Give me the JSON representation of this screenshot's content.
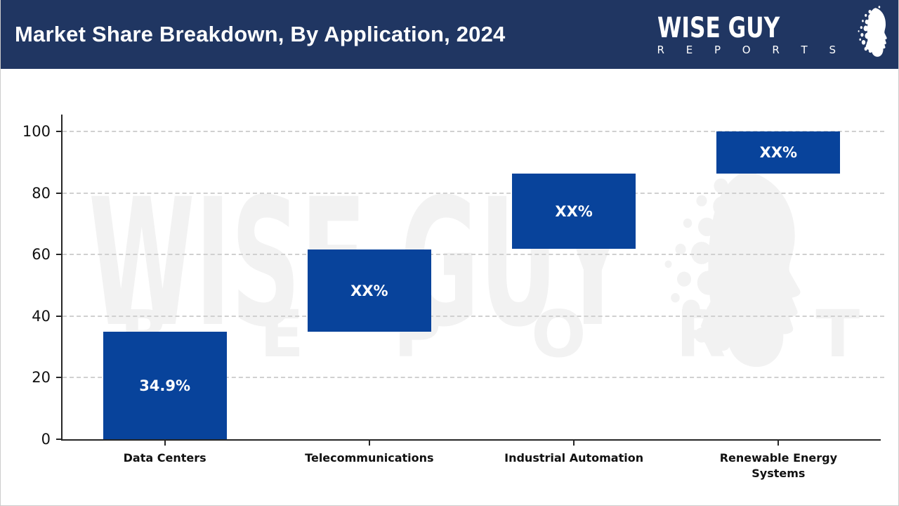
{
  "header": {
    "title": "Market Share Breakdown, By Application, 2024",
    "logo": {
      "name_line": "WISE GUY",
      "sub_line": "R E P O R T S",
      "face_icon": "dotted-face-profile"
    }
  },
  "watermark": {
    "line1": "WISE GUY",
    "line2": "R E P O R T S",
    "face_icon": "dotted-face-profile"
  },
  "colors": {
    "header_bg": "#203662",
    "header_text": "#ffffff",
    "bar_fill": "#08439b",
    "bar_label_text": "#ffffff",
    "axis_line": "#262626",
    "tick_label_text": "#111111",
    "gridline": "#d0d0d0",
    "watermark_gray": "#f2f2f2",
    "page_border": "#cccccc",
    "page_bg": "#ffffff"
  },
  "chart_data": {
    "type": "bar",
    "subtype": "floating-waterfall",
    "title": "Market Share Breakdown, By Application, 2024",
    "categories": [
      "Data Centers",
      "Telecommunications",
      "Industrial Automation",
      "Renewable Energy Systems"
    ],
    "segments": [
      {
        "category": "Data Centers",
        "start": 0,
        "end": 34.9,
        "label": "34.9%"
      },
      {
        "category": "Telecommunications",
        "start": 34.9,
        "end": 61.6,
        "label": "XX%"
      },
      {
        "category": "Industrial Automation",
        "start": 61.8,
        "end": 86.2,
        "label": "XX%"
      },
      {
        "category": "Renewable Energy Systems",
        "start": 86.4,
        "end": 100,
        "label": "XX%"
      }
    ],
    "ylim": [
      0,
      100
    ],
    "yticks": [
      0,
      20,
      40,
      60,
      80,
      100
    ],
    "xlabel": "",
    "ylabel": "",
    "grid": "horizontal-dashed",
    "legend": "none",
    "bar_color": "#08439b",
    "value_labels_inside_bars": true
  }
}
